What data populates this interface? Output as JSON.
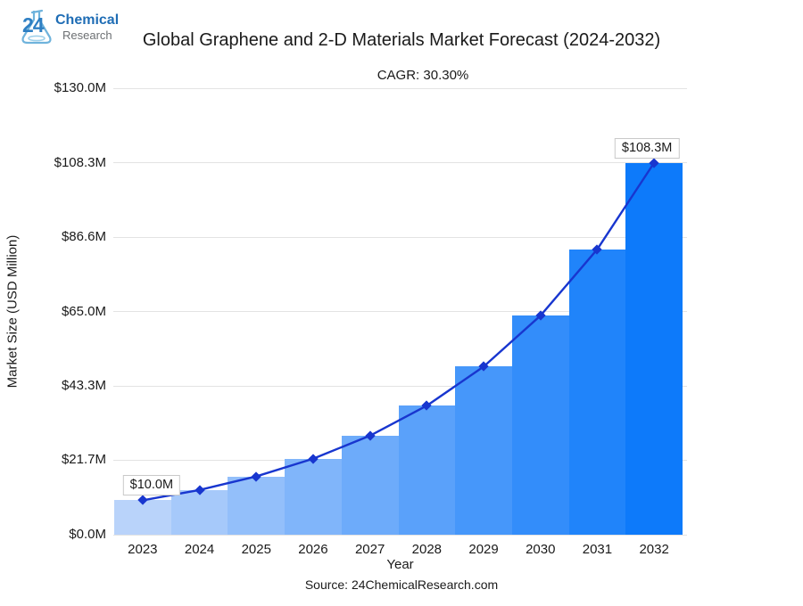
{
  "logo": {
    "number": "24",
    "line1": "Chemical",
    "line2": "Research"
  },
  "footer": {
    "source": "Source: 24ChemicalResearch.com"
  },
  "chart_data": {
    "type": "bar",
    "overlay": "line",
    "title": "Global Graphene and 2-D Materials Market Forecast (2024-2032)",
    "subtitle": "CAGR: 30.30%",
    "xlabel": "Year",
    "ylabel": "Market Size (USD Million)",
    "categories": [
      "2023",
      "2024",
      "2025",
      "2026",
      "2027",
      "2028",
      "2029",
      "2030",
      "2031",
      "2032"
    ],
    "values": [
      10.0,
      13.03,
      16.98,
      22.13,
      28.83,
      37.57,
      48.95,
      63.78,
      83.11,
      108.3
    ],
    "ylim": [
      0,
      130
    ],
    "yticks": [
      0,
      21.7,
      43.3,
      65.0,
      86.6,
      108.3,
      130.0
    ],
    "ytick_labels": [
      "$0.0M",
      "$21.7M",
      "$43.3M",
      "$65.0M",
      "$86.6M",
      "$108.3M",
      "$130.0M"
    ],
    "grid": "horizontal",
    "legend": "none",
    "bar_colors": [
      "#b9d3fa",
      "#a6c9fa",
      "#93bffa",
      "#80b5fa",
      "#6dabfa",
      "#5aa1fa",
      "#4697fa",
      "#338dfa",
      "#2084fa",
      "#0d7afa"
    ],
    "line_color": "#1836cf",
    "annotations": [
      {
        "index": 0,
        "text": "$10.0M",
        "dx": 10
      },
      {
        "index": 9,
        "text": "$108.3M",
        "dx": -8
      }
    ]
  }
}
